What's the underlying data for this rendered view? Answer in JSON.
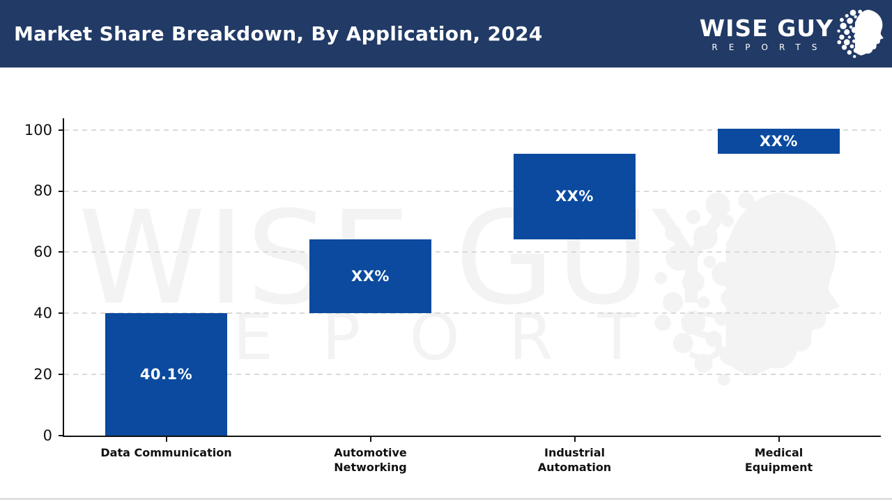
{
  "header": {
    "title": "Market Share Breakdown, By Application, 2024",
    "logo": {
      "line1": "WISE GUY",
      "line2": "REPORTS"
    }
  },
  "watermark": {
    "line1": "WISE GUY",
    "line2": "REPORTS"
  },
  "chart_data": {
    "type": "bar",
    "subtype": "floating-segment-breakdown",
    "title": "Market Share Breakdown, By Application, 2024",
    "categories": [
      "Data Communication",
      "Automotive\nNetworking",
      "Industrial\nAutomation",
      "Medical Equipment"
    ],
    "segments": [
      {
        "category": "Data Communication",
        "start": 0,
        "end": 40.1,
        "label": "40.1%"
      },
      {
        "category": "Automotive Networking",
        "start": 40.1,
        "end": 64.3,
        "label": "XX%"
      },
      {
        "category": "Industrial Automation",
        "start": 64.3,
        "end": 92.3,
        "label": "XX%"
      },
      {
        "category": "Medical Equipment",
        "start": 92.3,
        "end": 100.4,
        "label": "XX%"
      }
    ],
    "xlabel": "",
    "ylabel": "",
    "ylim": [
      0,
      103.8
    ],
    "yticks": [
      0,
      20,
      40,
      60,
      80,
      100
    ],
    "grid": "horizontal-dashed",
    "legend": null,
    "bar_width_fraction": 0.6,
    "colors": {
      "bar": "#0b4a9e",
      "bar_label": "#ffffff",
      "gridline": "#d9d9d9",
      "axis": "#111111",
      "header_bg": "#213a66",
      "header_text": "#ffffff",
      "watermark": "#f3f3f3"
    }
  }
}
